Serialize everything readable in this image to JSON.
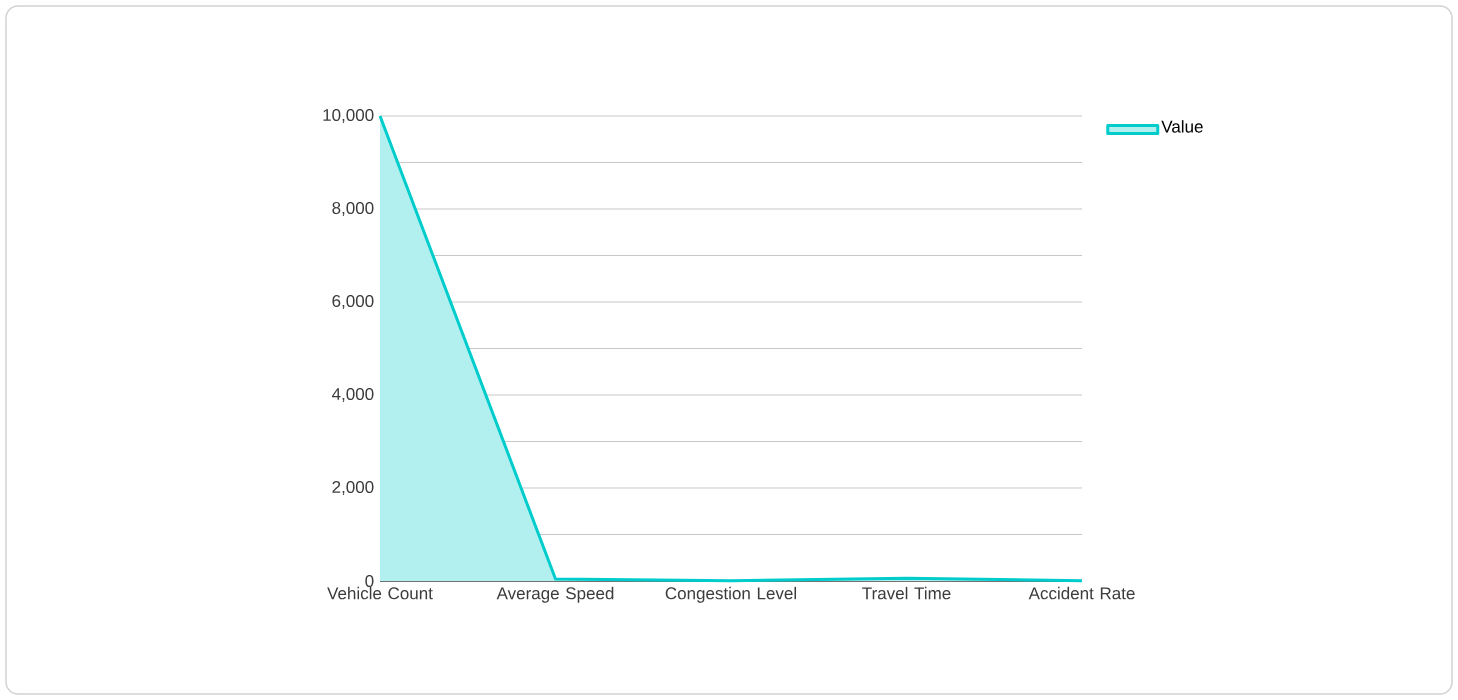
{
  "chart_data": {
    "type": "area",
    "categories": [
      "Vehicle Count",
      "Average Speed",
      "Congestion Level",
      "Travel Time",
      "Accident Rate"
    ],
    "series": [
      {
        "name": "Value",
        "color": "#00cccc",
        "values": [
          10000,
          45,
          5,
          60,
          5
        ]
      }
    ],
    "ylim": [
      0,
      10000
    ],
    "yticks": [
      {
        "value": 0,
        "label": "0"
      },
      {
        "value": 1000,
        "label": null
      },
      {
        "value": 2000,
        "label": "2,000"
      },
      {
        "value": 3000,
        "label": null
      },
      {
        "value": 4000,
        "label": "4,000"
      },
      {
        "value": 5000,
        "label": null
      },
      {
        "value": 6000,
        "label": "6,000"
      },
      {
        "value": 7000,
        "label": null
      },
      {
        "value": 8000,
        "label": "8,000"
      },
      {
        "value": 9000,
        "label": null
      },
      {
        "value": 10000,
        "label": "10,000"
      }
    ],
    "grid": "y",
    "legend": "top right"
  }
}
